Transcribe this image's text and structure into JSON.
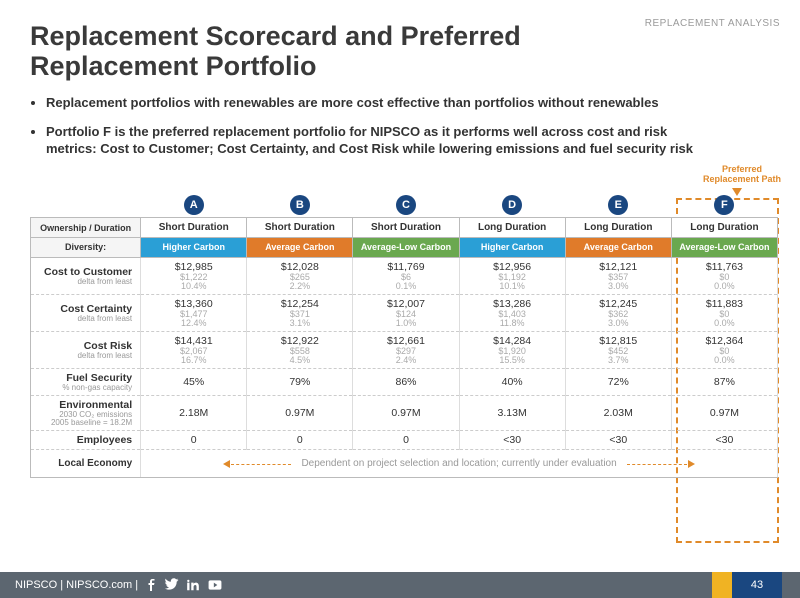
{
  "corner": "REPLACEMENT ANALYSIS",
  "title": "Replacement Scorecard and Preferred Replacement Portfolio",
  "bullets": [
    "Replacement portfolios with renewables are more cost effective than portfolios without renewables",
    "Portfolio F is the preferred replacement portfolio for NIPSCO as it performs well across cost and risk metrics: Cost to Customer; Cost Certainty, and Cost Risk while lowering emissions and fuel security risk"
  ],
  "preferred_label": "Preferred Replacement Path",
  "portfolios": [
    "A",
    "B",
    "C",
    "D",
    "E",
    "F"
  ],
  "own_dur_label": "Ownership / Duration",
  "durations": [
    "Short Duration",
    "Short Duration",
    "Short Duration",
    "Long Duration",
    "Long Duration",
    "Long Duration"
  ],
  "duration_dotted": [
    true,
    false,
    false,
    true,
    false,
    false
  ],
  "diversity_label": "Diversity:",
  "diversity": [
    {
      "text": "Higher Carbon",
      "color": "#2a9fd6"
    },
    {
      "text": "Average Carbon",
      "color": "#e07b2a"
    },
    {
      "text": "Average-Low Carbon",
      "color": "#6aa84f"
    },
    {
      "text": "Higher Carbon",
      "color": "#2a9fd6"
    },
    {
      "text": "Average Carbon",
      "color": "#e07b2a"
    },
    {
      "text": "Average-Low Carbon",
      "color": "#6aa84f"
    }
  ],
  "rows": [
    {
      "head": "Cost to Customer",
      "sub": "delta from least",
      "vals": [
        [
          "$12,985",
          "$1,222",
          "10.4%"
        ],
        [
          "$12,028",
          "$265",
          "2.2%"
        ],
        [
          "$11,769",
          "$6",
          "0.1%"
        ],
        [
          "$12,956",
          "$1,192",
          "10.1%"
        ],
        [
          "$12,121",
          "$357",
          "3.0%"
        ],
        [
          "$11,763",
          "$0",
          "0.0%"
        ]
      ]
    },
    {
      "head": "Cost Certainty",
      "sub": "delta from least",
      "vals": [
        [
          "$13,360",
          "$1,477",
          "12.4%"
        ],
        [
          "$12,254",
          "$371",
          "3.1%"
        ],
        [
          "$12,007",
          "$124",
          "1.0%"
        ],
        [
          "$13,286",
          "$1,403",
          "11.8%"
        ],
        [
          "$12,245",
          "$362",
          "3.0%"
        ],
        [
          "$11,883",
          "$0",
          "0.0%"
        ]
      ]
    },
    {
      "head": "Cost Risk",
      "sub": "delta from least",
      "vals": [
        [
          "$14,431",
          "$2,067",
          "16.7%"
        ],
        [
          "$12,922",
          "$558",
          "4.5%"
        ],
        [
          "$12,661",
          "$297",
          "2.4%"
        ],
        [
          "$14,284",
          "$1,920",
          "15.5%"
        ],
        [
          "$12,815",
          "$452",
          "3.7%"
        ],
        [
          "$12,364",
          "$0",
          "0.0%"
        ]
      ]
    },
    {
      "head": "Fuel Security",
      "sub": "% non-gas capacity",
      "vals": [
        [
          "45%"
        ],
        [
          "79%"
        ],
        [
          "86%"
        ],
        [
          "40%"
        ],
        [
          "72%"
        ],
        [
          "87%"
        ]
      ]
    },
    {
      "head": "Environmental",
      "sub": "2030 CO₂ emissions\n2005 baseline = 18.2M",
      "vals": [
        [
          "2.18M"
        ],
        [
          "0.97M"
        ],
        [
          "0.97M"
        ],
        [
          "3.13M"
        ],
        [
          "2.03M"
        ],
        [
          "0.97M"
        ]
      ]
    },
    {
      "head": "Employees",
      "sub": "",
      "vals": [
        [
          "0"
        ],
        [
          "0"
        ],
        [
          "0"
        ],
        [
          "<30"
        ],
        [
          "<30"
        ],
        [
          "<30"
        ]
      ]
    }
  ],
  "local_label": "Local Economy",
  "local_text": "Dependent on project selection and location; currently under evaluation",
  "footer": {
    "brand": "NIPSCO | NIPSCO.com |",
    "page": "43"
  }
}
